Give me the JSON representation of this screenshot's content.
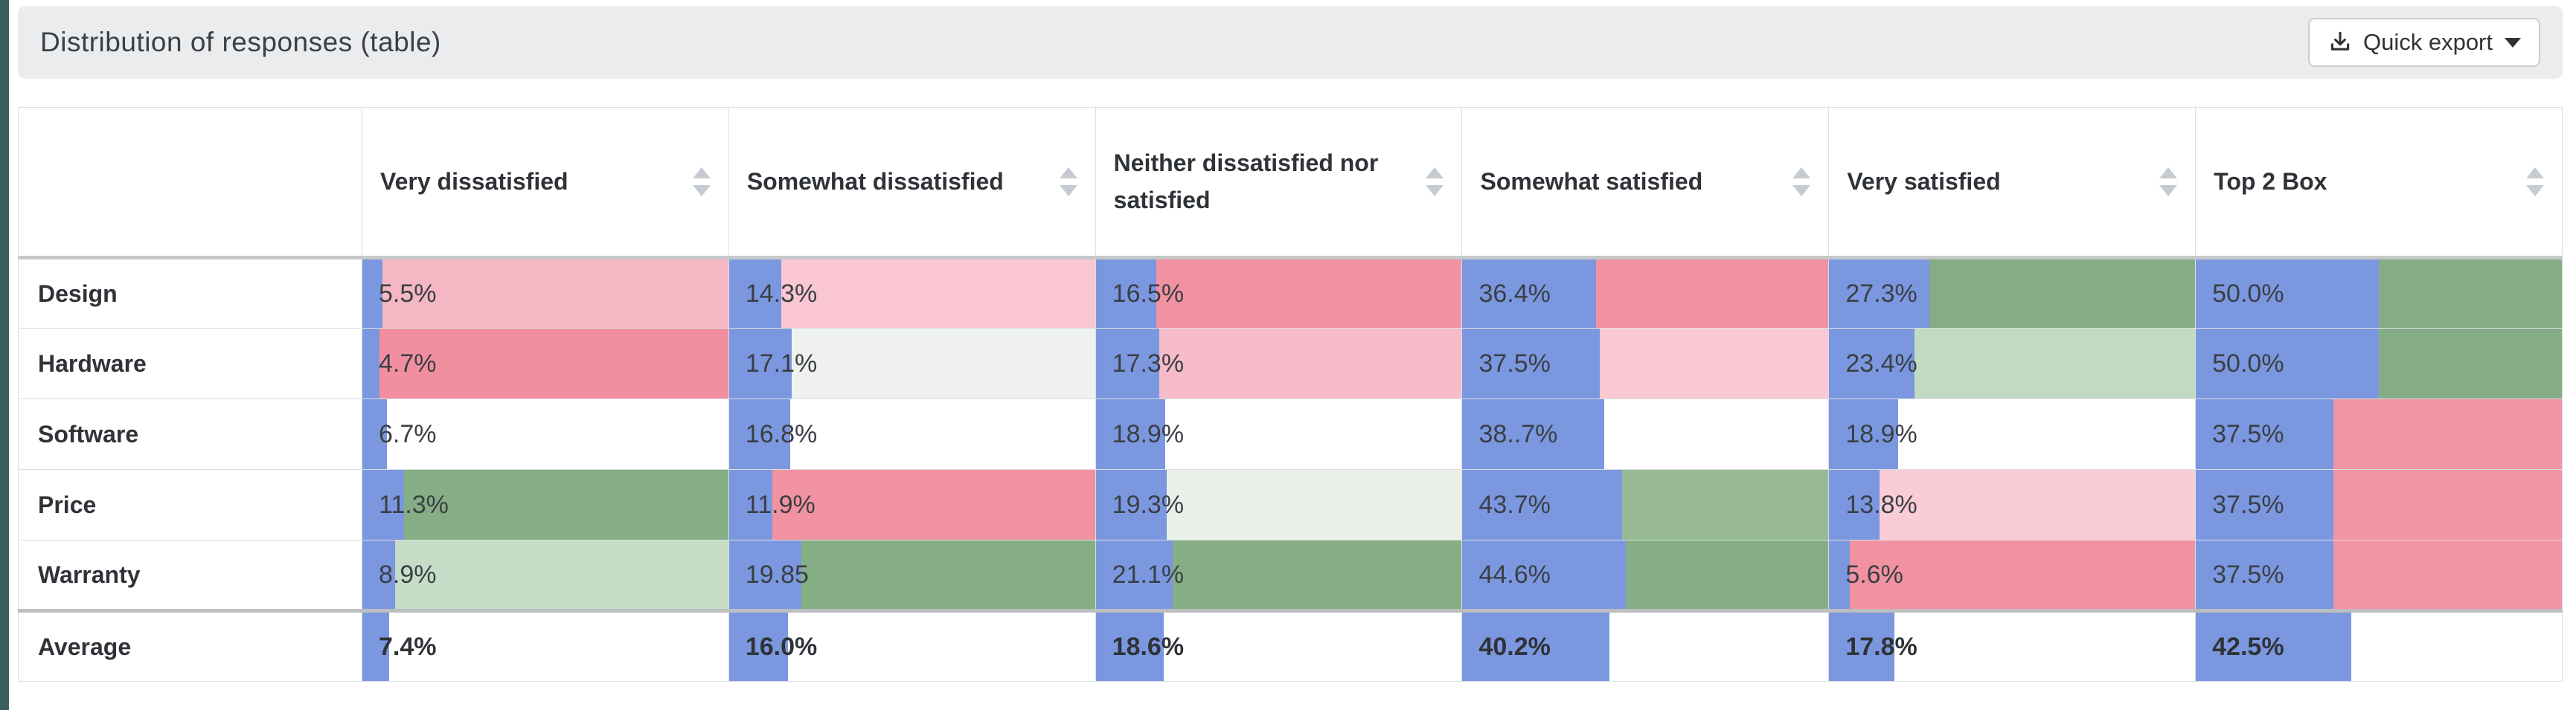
{
  "panel": {
    "title": "Distribution of responses (table)",
    "quick_export_label": "Quick export"
  },
  "colors": {
    "bar_blue": "#7b97e0",
    "panel_header_bg": "#eaecee",
    "page_edge": "#3d5e5e",
    "heat_strong_red": "#f192a2",
    "heat_strong_green": "#85ac85"
  },
  "table": {
    "corner_label": "",
    "columns": [
      {
        "label": "Very dissatisfied"
      },
      {
        "label": "Somewhat dissatisfied"
      },
      {
        "label": "Neither dissatisfied nor satisfied"
      },
      {
        "label": "Somewhat satisfied"
      },
      {
        "label": "Very satisfied"
      },
      {
        "label": "Top 2 Box"
      }
    ],
    "rows": [
      {
        "label": "Design",
        "bold": false,
        "cells": [
          {
            "text": "5.5%",
            "bar_pct": 5.5,
            "bg": "#f5b7c4"
          },
          {
            "text": "14.3%",
            "bar_pct": 14.3,
            "bg": "#f9c6d2"
          },
          {
            "text": "16.5%",
            "bar_pct": 16.5,
            "bg": "#f192a2"
          },
          {
            "text": "36.4%",
            "bar_pct": 36.4,
            "bg": "#f192a2"
          },
          {
            "text": "27.3%",
            "bar_pct": 27.3,
            "bg": "#85ac85"
          },
          {
            "text": "50.0%",
            "bar_pct": 50.0,
            "bg": "#85ac85"
          }
        ]
      },
      {
        "label": "Hardware",
        "bold": false,
        "cells": [
          {
            "text": "4.7%",
            "bar_pct": 4.7,
            "bg": "#f18fa0"
          },
          {
            "text": "17.1%",
            "bar_pct": 17.1,
            "bg": "#eff1ef"
          },
          {
            "text": "17.3%",
            "bar_pct": 17.3,
            "bg": "#f6bcc9"
          },
          {
            "text": "37.5%",
            "bar_pct": 37.5,
            "bg": "#f9c8d3"
          },
          {
            "text": "23.4%",
            "bar_pct": 23.4,
            "bg": "#c1dac1"
          },
          {
            "text": "50.0%",
            "bar_pct": 50.0,
            "bg": "#85ac85"
          }
        ]
      },
      {
        "label": "Software",
        "bold": false,
        "cells": [
          {
            "text": "6.7%",
            "bar_pct": 6.7,
            "bg": "#ffffff"
          },
          {
            "text": "16.8%",
            "bar_pct": 16.8,
            "bg": "#ffffff"
          },
          {
            "text": "18.9%",
            "bar_pct": 18.9,
            "bg": "#ffffff"
          },
          {
            "text": "38..7%",
            "bar_pct": 38.7,
            "bg": "#ffffff"
          },
          {
            "text": "18.9%",
            "bar_pct": 18.9,
            "bg": "#ffffff"
          },
          {
            "text": "37.5%",
            "bar_pct": 37.5,
            "bg": "#f194a3"
          }
        ]
      },
      {
        "label": "Price",
        "bold": false,
        "cells": [
          {
            "text": "11.3%",
            "bar_pct": 11.3,
            "bg": "#86ae86"
          },
          {
            "text": "11.9%",
            "bar_pct": 11.9,
            "bg": "#f192a0"
          },
          {
            "text": "19.3%",
            "bar_pct": 19.3,
            "bg": "#e9f0e9"
          },
          {
            "text": "43.7%",
            "bar_pct": 43.7,
            "bg": "#97ba95"
          },
          {
            "text": "13.8%",
            "bar_pct": 13.8,
            "bg": "#f9ccd6"
          },
          {
            "text": "37.5%",
            "bar_pct": 37.5,
            "bg": "#f194a3"
          }
        ]
      },
      {
        "label": "Warranty",
        "bold": false,
        "cells": [
          {
            "text": "8.9%",
            "bar_pct": 8.9,
            "bg": "#c5dcc6"
          },
          {
            "text": "19.85",
            "bar_pct": 19.85,
            "bg": "#85ae85"
          },
          {
            "text": "21.1%",
            "bar_pct": 21.1,
            "bg": "#85ae85"
          },
          {
            "text": "44.6%",
            "bar_pct": 44.6,
            "bg": "#85ae85"
          },
          {
            "text": "5.6%",
            "bar_pct": 5.6,
            "bg": "#f192a0"
          },
          {
            "text": "37.5%",
            "bar_pct": 37.5,
            "bg": "#f194a3"
          }
        ]
      },
      {
        "label": "Average",
        "bold": true,
        "cells": [
          {
            "text": "7.4%",
            "bar_pct": 7.4,
            "bg": "#ffffff"
          },
          {
            "text": "16.0%",
            "bar_pct": 16.0,
            "bg": "#ffffff"
          },
          {
            "text": "18.6%",
            "bar_pct": 18.6,
            "bg": "#ffffff"
          },
          {
            "text": "40.2%",
            "bar_pct": 40.2,
            "bg": "#ffffff"
          },
          {
            "text": "17.8%",
            "bar_pct": 17.8,
            "bg": "#ffffff"
          },
          {
            "text": "42.5%",
            "bar_pct": 42.5,
            "bg": "#ffffff"
          }
        ]
      }
    ]
  },
  "chart_data": {
    "type": "table",
    "title": "Distribution of responses (table)",
    "categories": [
      "Design",
      "Hardware",
      "Software",
      "Price",
      "Warranty",
      "Average"
    ],
    "series": [
      {
        "name": "Very dissatisfied",
        "values": [
          5.5,
          4.7,
          6.7,
          11.3,
          8.9,
          7.4
        ]
      },
      {
        "name": "Somewhat dissatisfied",
        "values": [
          14.3,
          17.1,
          16.8,
          11.9,
          19.85,
          16.0
        ]
      },
      {
        "name": "Neither dissatisfied nor satisfied",
        "values": [
          16.5,
          17.3,
          18.9,
          19.3,
          21.1,
          18.6
        ]
      },
      {
        "name": "Somewhat satisfied",
        "values": [
          36.4,
          37.5,
          38.7,
          43.7,
          44.6,
          40.2
        ]
      },
      {
        "name": "Very satisfied",
        "values": [
          27.3,
          23.4,
          18.9,
          13.8,
          5.6,
          17.8
        ]
      },
      {
        "name": "Top 2 Box",
        "values": [
          50.0,
          50.0,
          37.5,
          37.5,
          37.5,
          42.5
        ]
      }
    ],
    "units": "%",
    "bar_scale": [
      0,
      100
    ],
    "notes": "each cell shows a blue bar sized to its percentage over a red-green heatmap background"
  }
}
